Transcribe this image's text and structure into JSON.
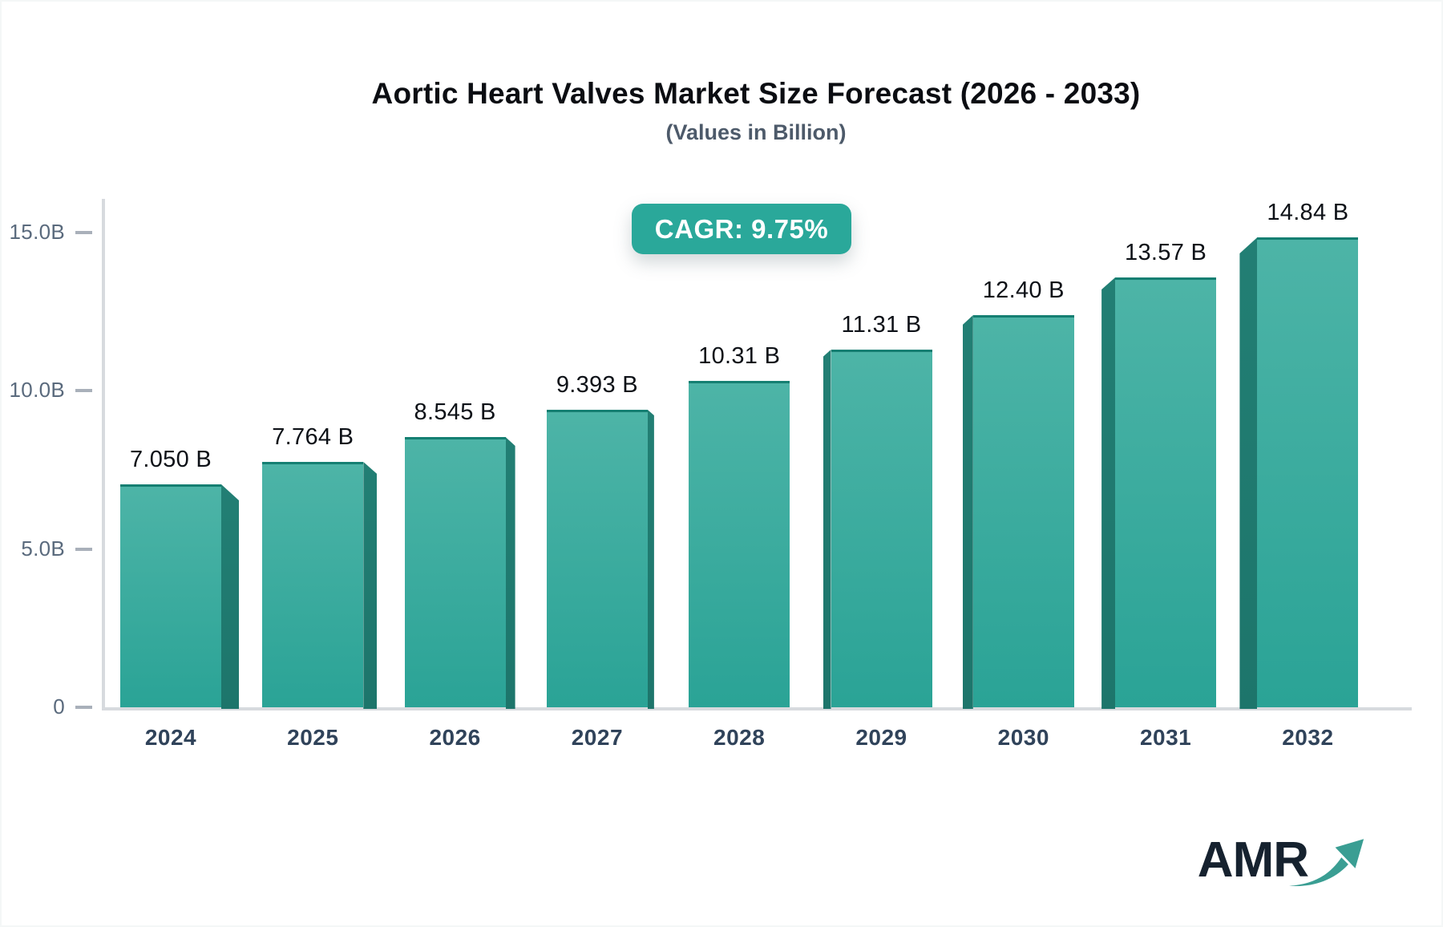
{
  "header": {
    "title": "Aortic Heart Valves Market Size Forecast (2026 - 2033)",
    "subtitle": "(Values in Billion)"
  },
  "badge": {
    "label": "CAGR: 9.75%",
    "background": "#2aa89a",
    "text_color": "#ffffff"
  },
  "chart_data": {
    "type": "bar",
    "title": "Aortic Heart Valves Market Size Forecast (2026 - 2033)",
    "subtitle": "(Values in Billion)",
    "cagr": "9.75%",
    "categories": [
      "2024",
      "2025",
      "2026",
      "2027",
      "2028",
      "2029",
      "2030",
      "2031",
      "2032"
    ],
    "values": [
      7.05,
      7.764,
      8.545,
      9.393,
      10.31,
      11.31,
      12.4,
      13.57,
      14.84
    ],
    "value_labels": [
      "7.050 B",
      "7.764 B",
      "8.545 B",
      "9.393 B",
      "10.31 B",
      "11.31 B",
      "12.40 B",
      "13.57 B",
      "14.84 B"
    ],
    "xlabel": "",
    "ylabel": "",
    "ylim": [
      0,
      15
    ],
    "yticks": [
      {
        "value": 15,
        "label": "15.0B"
      },
      {
        "value": 10,
        "label": "10.0B"
      },
      {
        "value": 5,
        "label": "5.0B"
      },
      {
        "value": 0,
        "label": "0"
      }
    ],
    "grid": false,
    "legend": "none",
    "bar_color_top": "#4db4a7",
    "bar_color_bottom": "#2aa396",
    "bar_side_color": "#1e7a6f",
    "bar_top_edge_color": "#157f72",
    "axis_color": "#d7dade",
    "tick_label_color": "#5a6a7d"
  },
  "logo": {
    "text": "AMR",
    "text_color": "#16222f",
    "arrow_color": "#3a9e93"
  }
}
